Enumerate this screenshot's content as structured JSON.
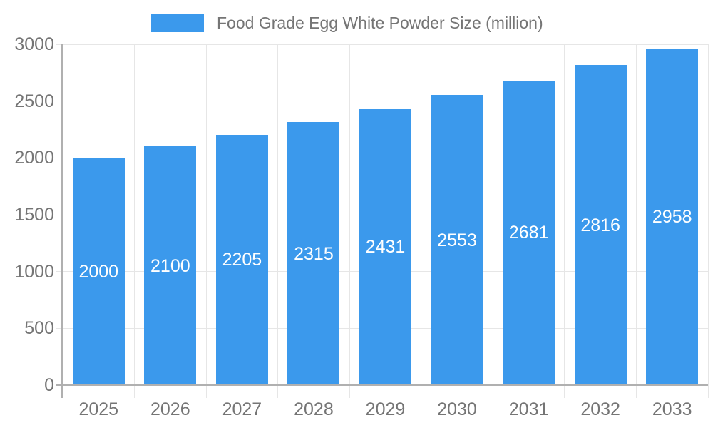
{
  "chart_data": {
    "type": "bar",
    "title": "Food Grade Egg White Powder Size (million)",
    "categories": [
      "2025",
      "2026",
      "2027",
      "2028",
      "2029",
      "2030",
      "2031",
      "2032",
      "2033"
    ],
    "values": [
      2000,
      2100,
      2205,
      2315,
      2431,
      2553,
      2681,
      2816,
      2958
    ],
    "bar_labels": [
      "2000",
      "2100",
      "2205",
      "2315",
      "2431",
      "2553",
      "2681",
      "2816",
      "2958"
    ],
    "xlabel": "",
    "ylabel": "",
    "ylim": [
      0,
      3000
    ],
    "ytick_step": 500,
    "yticks": [
      "0",
      "500",
      "1000",
      "1500",
      "2000",
      "2500",
      "3000"
    ],
    "grid": true,
    "legend_position": "top",
    "bar_label_position": "center"
  },
  "colors": {
    "bar": "#3b99ec",
    "axis_text": "#757575",
    "grid_line": "#e6e6e6",
    "axis_line": "#b0b0b0",
    "value_label": "#ffffff",
    "background": "#ffffff"
  }
}
